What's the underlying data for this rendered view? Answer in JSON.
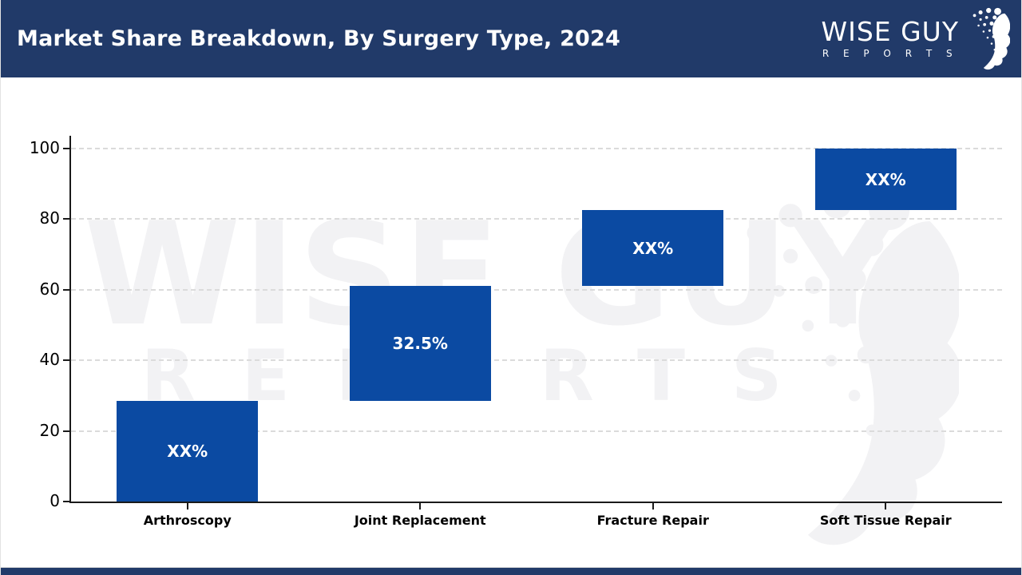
{
  "header": {
    "title": "Market Share Breakdown, By Surgery Type, 2024",
    "logo": {
      "name": "WISE GUY",
      "sub": "R E P O R T S"
    }
  },
  "watermark": {
    "name": "WISE GUY",
    "sub": "REPORTS"
  },
  "chart_data": {
    "type": "bar",
    "variant": "waterfall",
    "title": "Market Share Breakdown, By Surgery Type, 2024",
    "categories": [
      "Arthroscopy",
      "Joint Replacement",
      "Fracture Repair",
      "Soft Tissue Repair"
    ],
    "segments": [
      {
        "category": "Arthroscopy",
        "start": 0,
        "end": 28.5,
        "label": "XX%"
      },
      {
        "category": "Joint Replacement",
        "start": 28.5,
        "end": 61,
        "label": "32.5%"
      },
      {
        "category": "Fracture Repair",
        "start": 61,
        "end": 82.5,
        "label": "XX%"
      },
      {
        "category": "Soft Tissue Repair",
        "start": 82.5,
        "end": 100,
        "label": "XX%"
      }
    ],
    "xlabel": "",
    "ylabel": "",
    "ylim": [
      0,
      100
    ],
    "yticks": [
      0,
      20,
      40,
      60,
      80,
      100
    ],
    "grid": "horizontal-dashed",
    "legend": "none",
    "colors": {
      "bar": "#0B4AA2",
      "bar_label": "#FFFFFF",
      "header_bg": "#213A69",
      "grid": "#DBDBDB",
      "axis": "#1A1A1A",
      "watermark": "#F2F2F4"
    }
  }
}
